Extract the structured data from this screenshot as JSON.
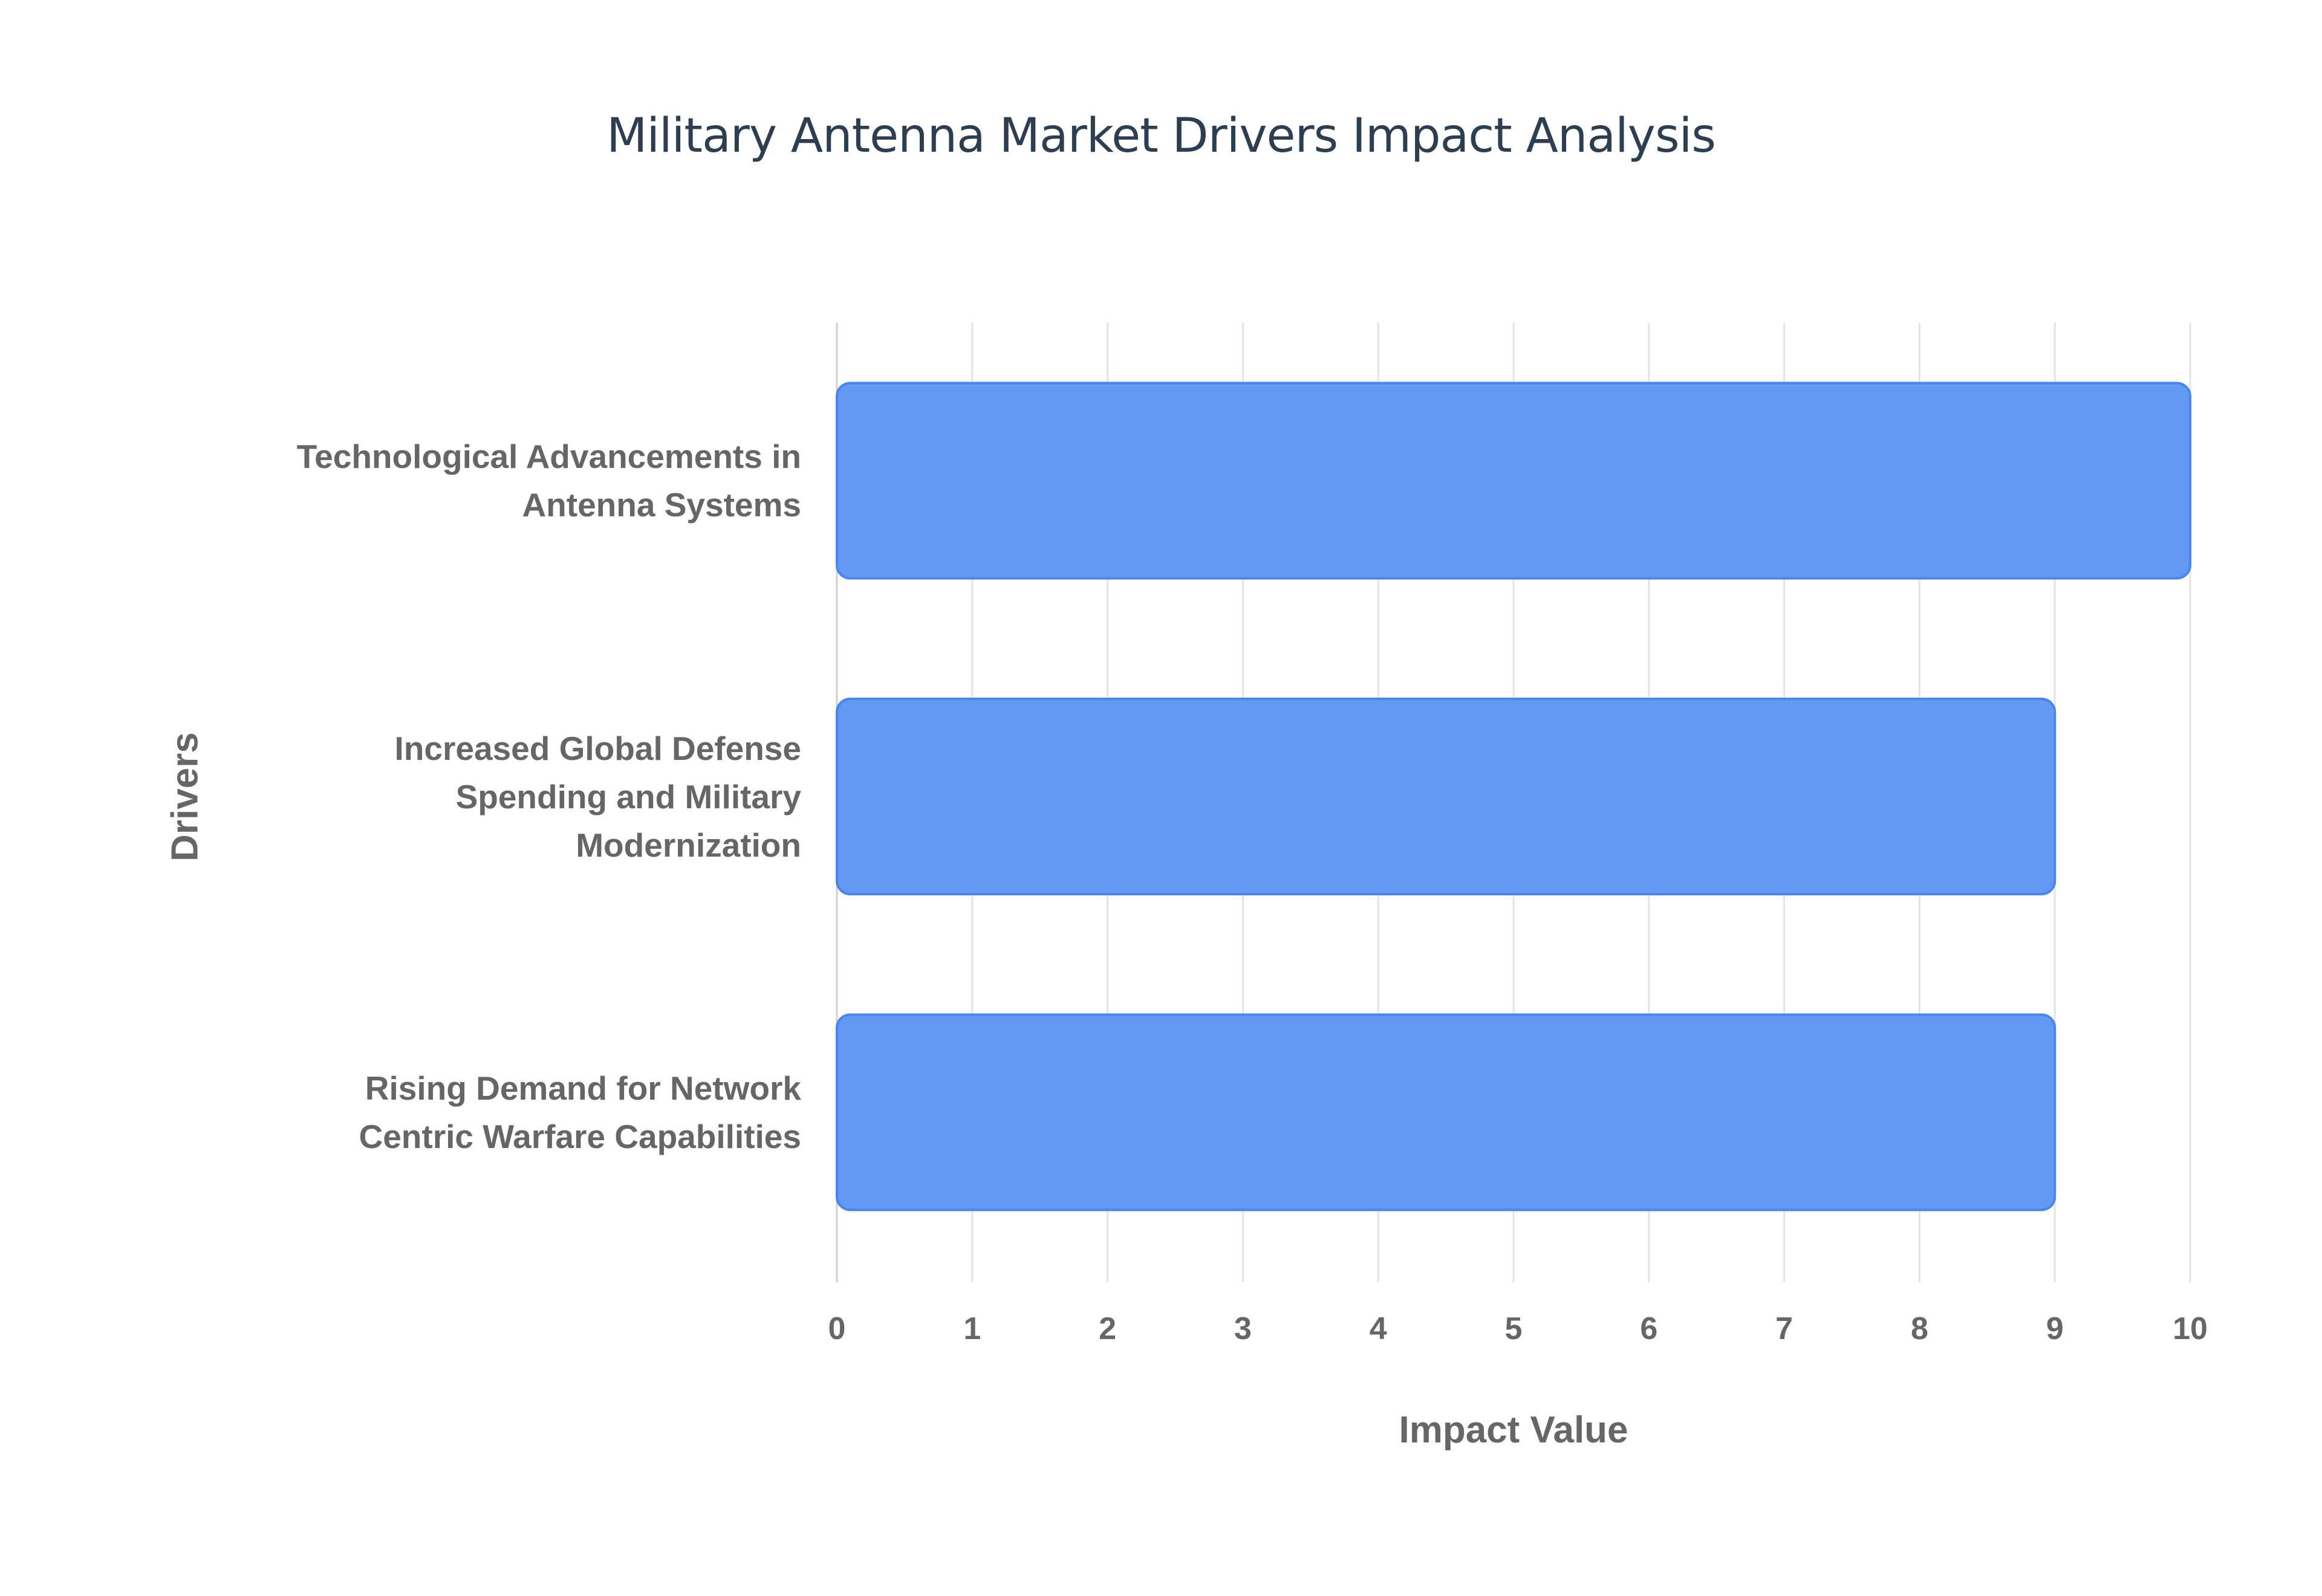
{
  "chart_data": {
    "type": "bar",
    "orientation": "horizontal",
    "title": "Military Antenna Market Drivers Impact Analysis",
    "xlabel": "Impact Value",
    "ylabel": "Drivers",
    "categories": [
      "Technological Advancements in Antenna Systems",
      "Increased Global Defense Spending and Military Modernization",
      "Rising Demand for Network Centric Warfare Capabilities"
    ],
    "category_lines": [
      [
        "Technological Advancements in",
        "Antenna Systems"
      ],
      [
        "Increased Global Defense",
        "Spending and Military",
        "Modernization"
      ],
      [
        "Rising Demand for Network",
        "Centric Warfare Capabilities"
      ]
    ],
    "values": [
      10,
      9,
      9
    ],
    "xlim": [
      0,
      10
    ],
    "xticks": [
      "0",
      "1",
      "2",
      "3",
      "4",
      "5",
      "6",
      "7",
      "8",
      "9",
      "10"
    ],
    "grid": true,
    "legend": "none",
    "colors": {
      "bar_fill": "#6399f5",
      "bar_border": "#4a86e8",
      "grid": "#e3e3e3"
    }
  }
}
